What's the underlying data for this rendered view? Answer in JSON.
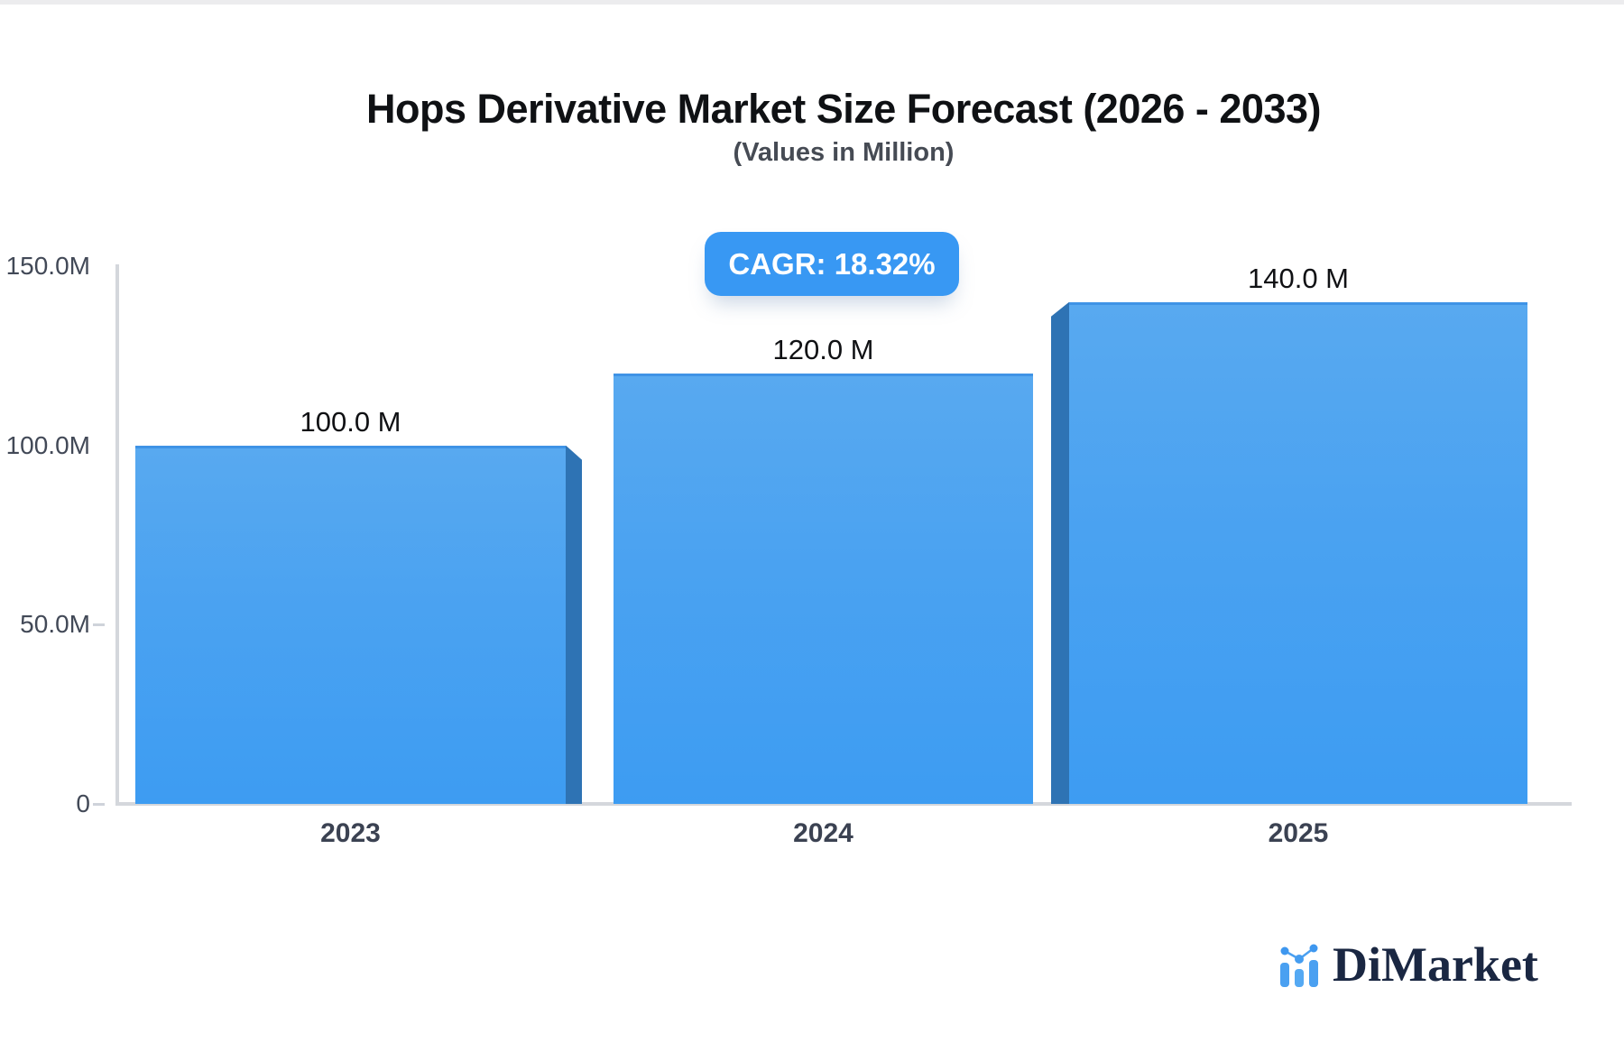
{
  "header": {
    "title": "Hops Derivative Market Size Forecast (2026 - 2033)",
    "subtitle": "(Values in Million)"
  },
  "cagr_badge": {
    "text": "CAGR: 18.32%"
  },
  "chart_data": {
    "type": "bar",
    "title": "Hops Derivative Market Size Forecast (2026 - 2033)",
    "subtitle": "(Values in Million)",
    "unit": "Million",
    "categories": [
      "2023",
      "2024",
      "2025"
    ],
    "values": [
      100,
      120,
      140
    ],
    "value_labels": [
      "100.0 M",
      "120.0 M",
      "140.0 M"
    ],
    "xlabel": "",
    "ylabel": "",
    "ylim": [
      0,
      150
    ],
    "grid": false,
    "legend_position": "none",
    "yticks": [
      {
        "label": "150.0M",
        "value": 150,
        "dash": false
      },
      {
        "label": "100.0M",
        "value": 100,
        "dash": false
      },
      {
        "label": "50.0M",
        "value": 50,
        "dash": true
      },
      {
        "label": "0",
        "value": 0,
        "dash": true
      }
    ],
    "colors": {
      "bar_top": "#58a9f0",
      "bar_bottom": "#3d9cf2",
      "bar_bevel": "#2e73b4",
      "badge": "#3898f3",
      "axis": "#d4d7dc"
    }
  },
  "branding": {
    "logo_text": "DiMarket",
    "logo_icon": "bar-chart-icon"
  }
}
